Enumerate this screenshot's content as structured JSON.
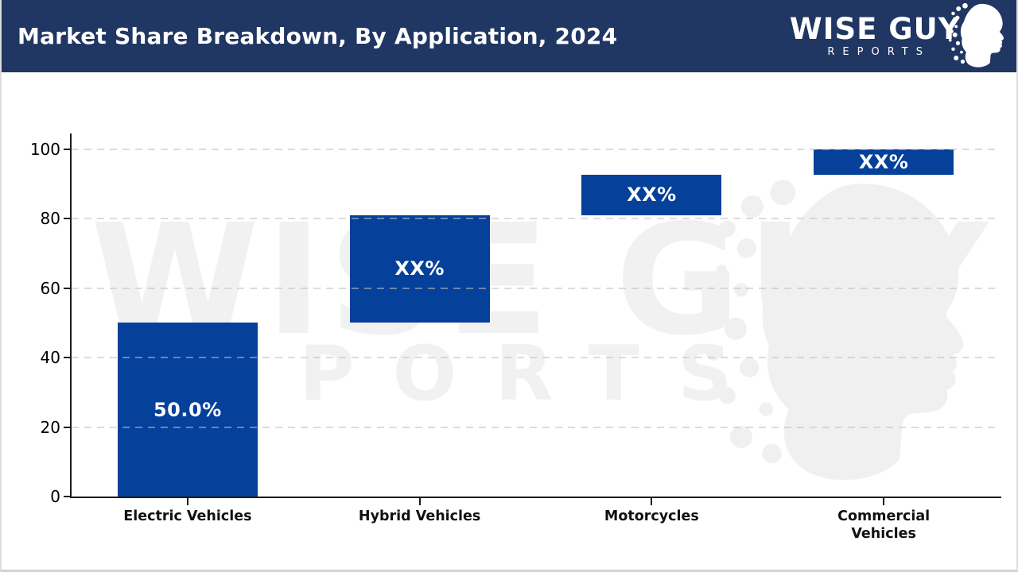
{
  "page": {
    "bg": "#ffffff",
    "edge_border_color": "#dcdcdc"
  },
  "header": {
    "bg_color": "#203663",
    "title": "Market Share Breakdown, By Application, 2024",
    "logo": {
      "line1": "WISE GUY",
      "line2": "REPORTS"
    }
  },
  "watermark": {
    "line1": "WISE GUY",
    "line2": "REPORTS"
  },
  "chart_data": {
    "type": "bar",
    "subtype": "waterfall",
    "title": "Market Share Breakdown, By Application, 2024",
    "categories": [
      "Electric Vehicles",
      "Hybrid Vehicles",
      "Motorcycles",
      "Commercial Vehicles"
    ],
    "category_label_lines": [
      [
        "Electric Vehicles"
      ],
      [
        "Hybrid Vehicles"
      ],
      [
        "Motorcycles"
      ],
      [
        "Commercial",
        "Vehicles"
      ]
    ],
    "segments": [
      {
        "category": "Electric Vehicles",
        "start": 0,
        "end": 50,
        "value": 50.0,
        "label": "50.0%"
      },
      {
        "category": "Hybrid Vehicles",
        "start": 50,
        "end": 81,
        "value": 31,
        "label": "XX%"
      },
      {
        "category": "Motorcycles",
        "start": 81,
        "end": 92.5,
        "value": 11.5,
        "label": "XX%"
      },
      {
        "category": "Commercial Vehicles",
        "start": 92.5,
        "end": 100,
        "value": 7.5,
        "label": "XX%"
      }
    ],
    "yticks": [
      0,
      20,
      40,
      60,
      80,
      100
    ],
    "ylim": [
      0,
      103.5
    ],
    "grid": {
      "horizontal": true,
      "style": "dashed",
      "color": "#c0c0c0"
    },
    "bar_color": "#05409a",
    "bar_label_color": "#ffffff",
    "axis_color": "#1a1a1a",
    "tick_label_color": "#000000",
    "xlabel": "",
    "ylabel": "",
    "legend": null
  }
}
